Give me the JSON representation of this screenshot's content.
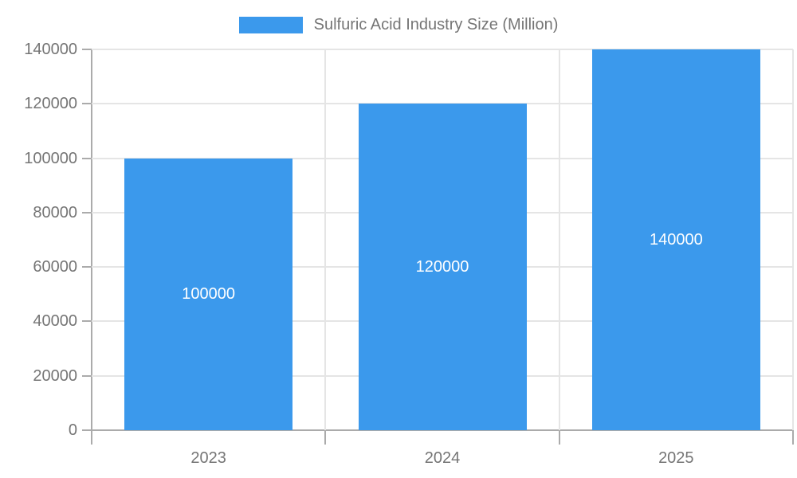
{
  "chart_data": {
    "type": "bar",
    "categories": [
      "2023",
      "2024",
      "2025"
    ],
    "series": [
      {
        "name": "Sulfuric Acid Industry Size (Million)",
        "values": [
          100000,
          120000,
          140000
        ]
      }
    ],
    "data_labels": [
      "100000",
      "120000",
      "140000"
    ],
    "y_tick_labels": [
      "0",
      "20000",
      "40000",
      "60000",
      "80000",
      "100000",
      "120000",
      "140000"
    ],
    "ylim": [
      0,
      140000
    ],
    "y_tick_step": 20000,
    "grid": true,
    "legend_position": "top",
    "colors": {
      "bar": "#3b99ec",
      "bar_label_text": "#ffffff",
      "axis_text": "#757575",
      "gridline": "#e5e5e5",
      "axis_line": "#ababab",
      "background": "#ffffff"
    }
  }
}
